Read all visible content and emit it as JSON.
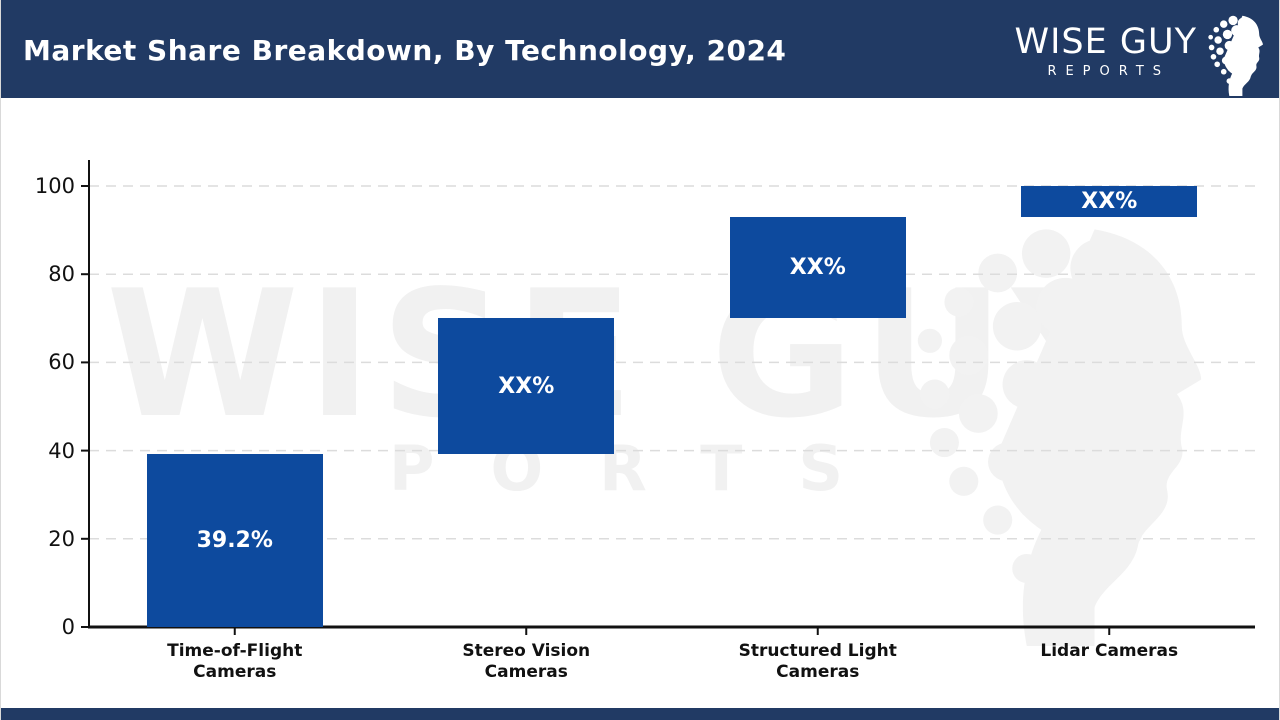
{
  "header": {
    "title": "Market Share Breakdown, By Technology, 2024",
    "bg_color": "#213a64",
    "logo": {
      "line1": "WISE GUY",
      "line2": "REPORTS"
    }
  },
  "watermark": {
    "line1": "WISE GUY",
    "line2": "PORTS"
  },
  "footer": {
    "bg_color": "#213a64"
  },
  "chart_data": {
    "type": "bar",
    "variant": "waterfall-percentage",
    "title": "Market Share Breakdown, By Technology, 2024",
    "categories": [
      "Time-of-Flight Cameras",
      "Stereo Vision Cameras",
      "Structured Light Cameras",
      "Lidar Cameras"
    ],
    "category_lines": [
      [
        "Time-of-Flight",
        "Cameras"
      ],
      [
        "Stereo Vision",
        "Cameras"
      ],
      [
        "Structured Light",
        "Cameras"
      ],
      [
        "Lidar Cameras"
      ]
    ],
    "series": [
      {
        "name": "Time-of-Flight Cameras",
        "start": 0,
        "end": 39.2,
        "value": 39.2,
        "label": "39.2%"
      },
      {
        "name": "Stereo Vision Cameras",
        "start": 39.2,
        "end": 70,
        "value": 30.8,
        "label": "XX%"
      },
      {
        "name": "Structured Light Cameras",
        "start": 70,
        "end": 93,
        "value": 23,
        "label": "XX%"
      },
      {
        "name": "Lidar Cameras",
        "start": 93,
        "end": 100,
        "value": 7,
        "label": "XX%"
      }
    ],
    "ylim": [
      0,
      100
    ],
    "yticks": [
      0,
      20,
      40,
      60,
      80,
      100
    ],
    "ytick_labels": [
      "0",
      "20",
      "40",
      "60",
      "80",
      "100"
    ],
    "grid": "horizontal-dashed",
    "legend": "none",
    "bar_color": "#0d4a9e",
    "bar_label_color": "#ffffff",
    "axis_color": "#111111",
    "grid_color": "#dcdcdc"
  }
}
